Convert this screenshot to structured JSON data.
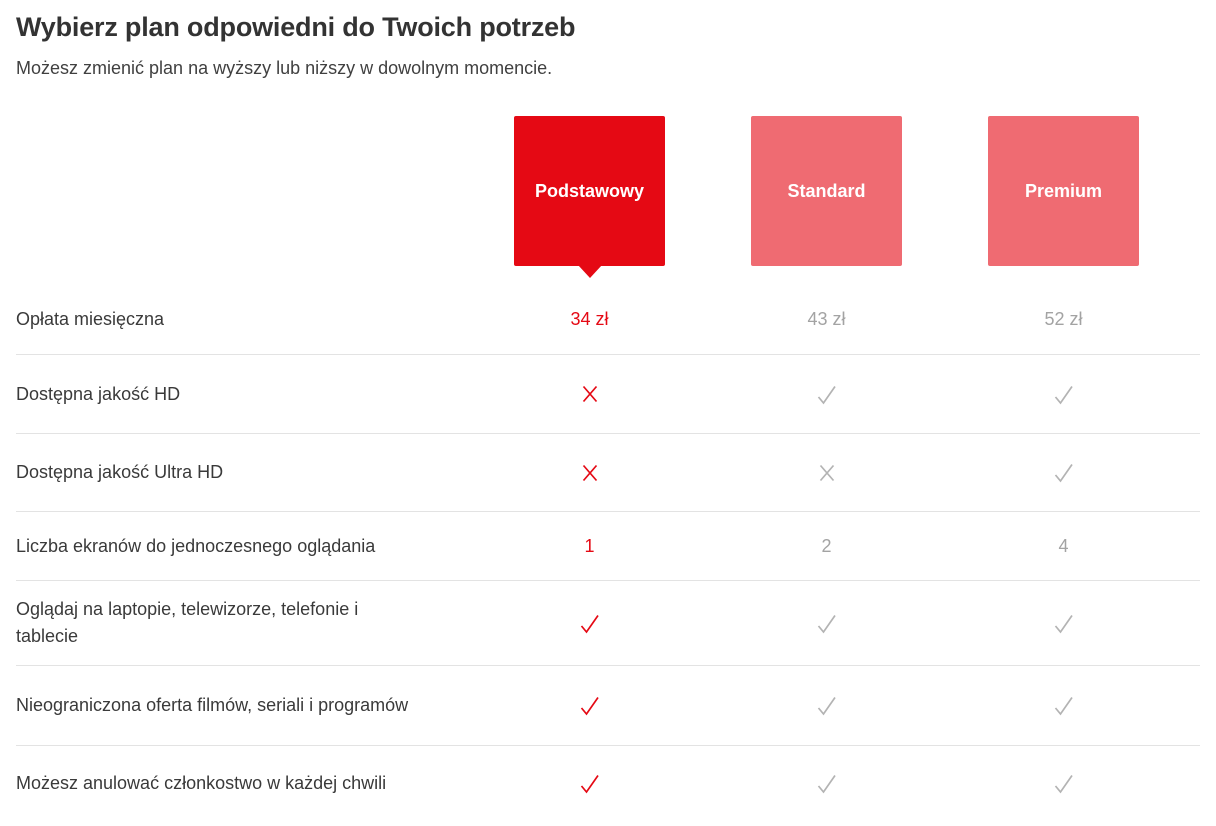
{
  "header": {
    "title": "Wybierz plan odpowiedni do Twoich potrzeb",
    "subtitle": "Możesz zmienić plan na wyższy lub niższy w dowolnym momencie."
  },
  "colors": {
    "selected_plan": "#e50914",
    "unselected_plan": "#ef6b72",
    "gray_value_text": "#a3a3a3",
    "gray_mark": "#b3b3b3",
    "divider": "#e3e3e3",
    "label_text": "#3a3a3a"
  },
  "icons": {
    "yes": "check-icon",
    "no": "x-icon"
  },
  "plans": [
    {
      "name": "Podstawowy",
      "selected": true
    },
    {
      "name": "Standard",
      "selected": false
    },
    {
      "name": "Premium",
      "selected": false
    }
  ],
  "features": [
    {
      "label": "Opłata miesięczna",
      "type": "text",
      "values": [
        "34 zł",
        "43 zł",
        "52 zł"
      ]
    },
    {
      "label": "Dostępna jakość HD",
      "type": "mark",
      "values": [
        "no",
        "yes",
        "yes"
      ]
    },
    {
      "label": "Dostępna jakość Ultra HD",
      "type": "mark",
      "values": [
        "no",
        "no",
        "yes"
      ]
    },
    {
      "label": "Liczba ekranów do jednoczesnego oglądania",
      "type": "text",
      "values": [
        "1",
        "2",
        "4"
      ]
    },
    {
      "label": "Oglądaj na laptopie, telewizorze, telefonie i tablecie",
      "type": "mark",
      "values": [
        "yes",
        "yes",
        "yes"
      ]
    },
    {
      "label": "Nieograniczona oferta filmów, seriali i programów",
      "type": "mark",
      "values": [
        "yes",
        "yes",
        "yes"
      ]
    },
    {
      "label": "Możesz anulować członkostwo w każdej chwili",
      "type": "mark",
      "values": [
        "yes",
        "yes",
        "yes"
      ]
    }
  ]
}
